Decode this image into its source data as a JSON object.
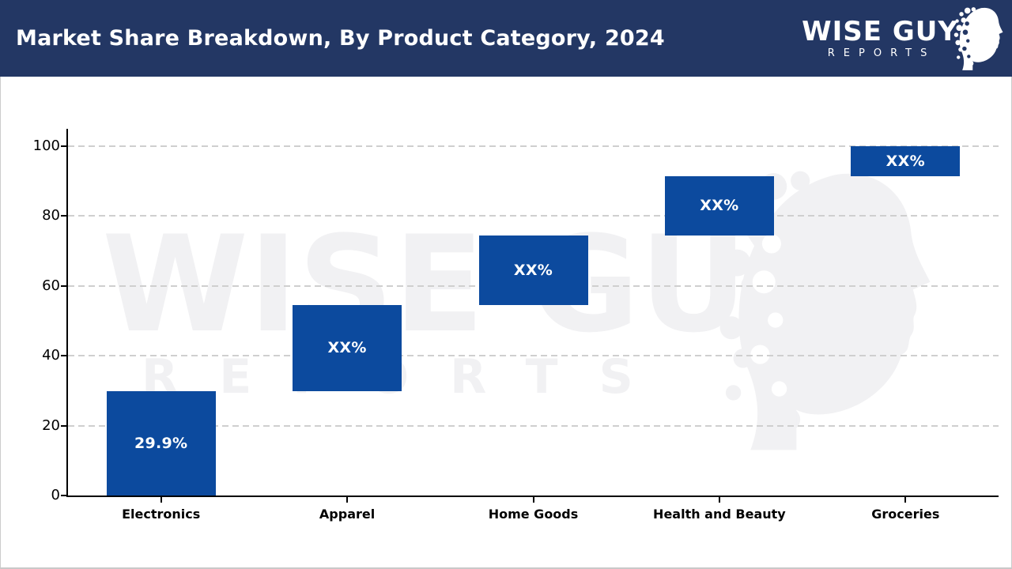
{
  "header": {
    "title": "Market Share Breakdown, By Product Category, 2024",
    "bg_color": "#233764",
    "logo": {
      "line1": "WISE GUY",
      "line2": "REPORTS"
    }
  },
  "watermark": {
    "line1": "WISE GUY",
    "line2": "REPORTS"
  },
  "chart_data": {
    "type": "bar",
    "subtype": "waterfall",
    "title": "Market Share Breakdown, By Product Category, 2024",
    "categories": [
      "Electronics",
      "Apparel",
      "Home Goods",
      "Health and Beauty",
      "Groceries"
    ],
    "segments": [
      {
        "category": "Electronics",
        "start": 0,
        "end": 29.9,
        "value": 29.9,
        "label": "29.9%"
      },
      {
        "category": "Apparel",
        "start": 29.9,
        "end": 54.6,
        "value": 24.7,
        "label": "XX%"
      },
      {
        "category": "Home Goods",
        "start": 54.6,
        "end": 74.4,
        "value": 19.8,
        "label": "XX%"
      },
      {
        "category": "Health and Beauty",
        "start": 74.4,
        "end": 91.5,
        "value": 17.1,
        "label": "XX%"
      },
      {
        "category": "Groceries",
        "start": 91.5,
        "end": 100,
        "value": 8.5,
        "label": "XX%"
      }
    ],
    "yticks": [
      0,
      20,
      40,
      60,
      80,
      100
    ],
    "ylim": [
      0,
      105
    ],
    "xlabel": "",
    "ylabel": "",
    "grid": "dashed-horizontal",
    "legend": "none",
    "bar_color": "#0c4a9e",
    "bar_label_color": "#ffffff"
  }
}
